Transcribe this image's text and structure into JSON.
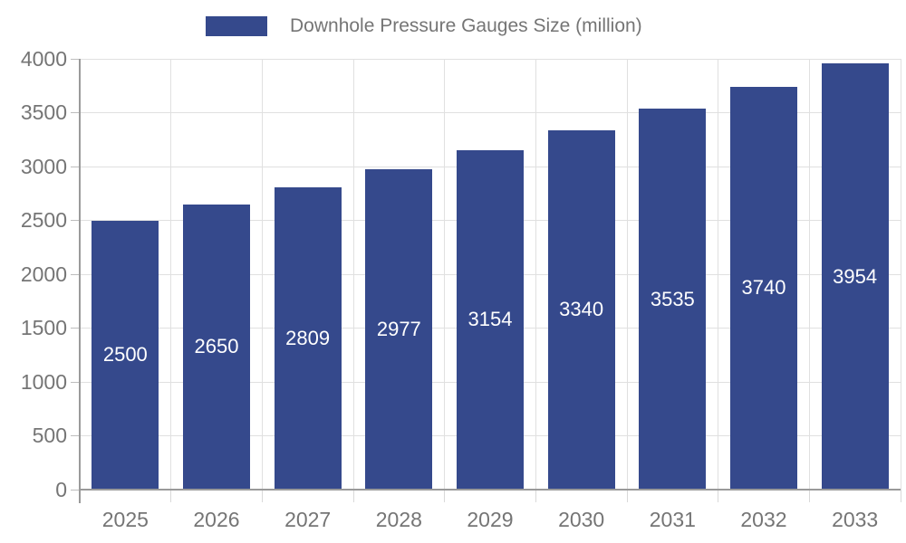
{
  "chart_data": {
    "type": "bar",
    "title": "",
    "legend": "Downhole Pressure Gauges Size (million)",
    "legend_position": "top",
    "categories": [
      "2025",
      "2026",
      "2027",
      "2028",
      "2029",
      "2030",
      "2031",
      "2032",
      "2033"
    ],
    "values": [
      2500,
      2650,
      2809,
      2977,
      3154,
      3340,
      3535,
      3740,
      3954
    ],
    "value_labels": [
      "2500",
      "2650",
      "2809",
      "2977",
      "3154",
      "3340",
      "3535",
      "3740",
      "3954"
    ],
    "xlabel": "",
    "ylabel": "",
    "ylim": [
      0,
      4000
    ],
    "ytick_step": 500,
    "ytick_labels": [
      "0",
      "500",
      "1000",
      "1500",
      "2000",
      "2500",
      "3000",
      "3500",
      "4000"
    ],
    "grid": true,
    "colors": {
      "bar": "#35498c",
      "bar_value_text": "#ffffff",
      "axis_text": "#757575",
      "legend_text": "#757575",
      "gridline": "#e0e0e0",
      "axis_line": "#9a9a9a",
      "background": "#ffffff"
    }
  }
}
